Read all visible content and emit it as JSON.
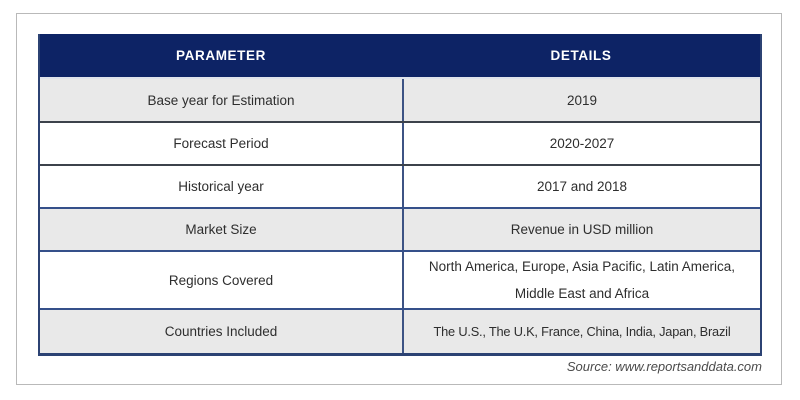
{
  "theme": {
    "header_bg": "#0d2365",
    "header_text": "#ffffff",
    "row_alt_bg": "#e9e9e9",
    "row_bg": "#ffffff",
    "border_navy": "#2c4273",
    "cell_text": "#2e2e2e"
  },
  "table": {
    "headers": [
      "PARAMETER",
      "DETAILS"
    ],
    "rows": [
      {
        "parameter": "Base year for Estimation",
        "details": "2019"
      },
      {
        "parameter": "Forecast Period",
        "details": "2020-2027"
      },
      {
        "parameter": "Historical year",
        "details": "2017 and 2018"
      },
      {
        "parameter": "Market Size",
        "details": "Revenue in USD million"
      },
      {
        "parameter": "Regions Covered",
        "details": "North America, Europe, Asia Pacific, Latin America, Middle East and Africa"
      },
      {
        "parameter": "Countries Included",
        "details": "The U.S., The  U.K, France, China, India, Japan, Brazil"
      }
    ]
  },
  "page": {
    "source_note": "Source: www.reportsanddata.com"
  }
}
